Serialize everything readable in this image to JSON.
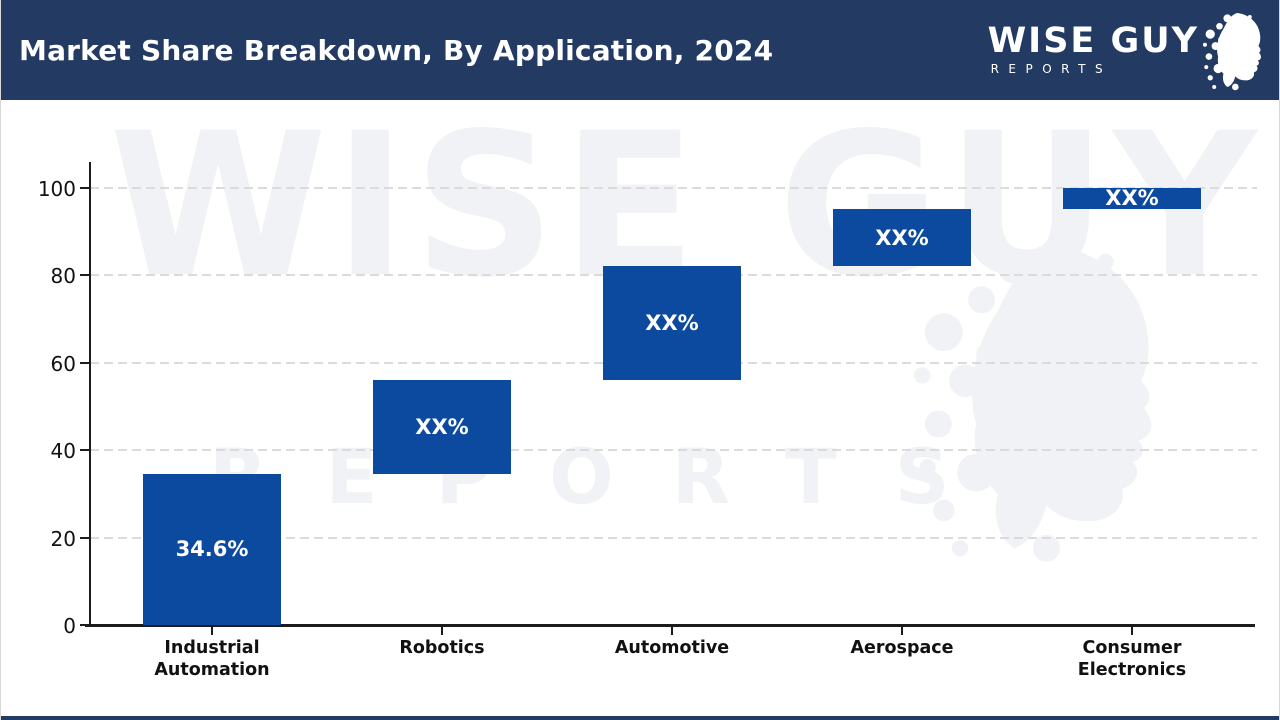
{
  "header": {
    "title": "Market Share Breakdown, By Application, 2024",
    "logo": {
      "line1": "WISE GUY",
      "line2": "REPORTS"
    }
  },
  "watermark": {
    "line1": "WISE GUY",
    "line2": "REPORTS"
  },
  "colors": {
    "header_bg": "#233A63",
    "footer_bg": "#233A63",
    "bar": "#0C4AA0",
    "grid": "#DBDBDB",
    "axis": "#1C1C1C",
    "bar_label": "#FFFFFF",
    "watermark_text": "#F1F2F5",
    "watermark_head": "#F0F2F5"
  },
  "chart_data": {
    "type": "bar",
    "subtype": "waterfall",
    "title": "Market Share Breakdown, By Application, 2024",
    "categories": [
      "Industrial Automation",
      "Robotics",
      "Automotive",
      "Aerospace",
      "Consumer Electronics"
    ],
    "segments": [
      {
        "category": "Industrial Automation",
        "start": 0,
        "end": 34.6,
        "label": "34.6%"
      },
      {
        "category": "Robotics",
        "start": 34.6,
        "end": 56,
        "label": "XX%"
      },
      {
        "category": "Automotive",
        "start": 56,
        "end": 82,
        "label": "XX%"
      },
      {
        "category": "Aerospace",
        "start": 82,
        "end": 95,
        "label": "XX%"
      },
      {
        "category": "Consumer Electronics",
        "start": 95,
        "end": 100,
        "label": "XX%"
      }
    ],
    "xlabel": "",
    "ylabel": "",
    "ylim": [
      0,
      100
    ],
    "yticks": [
      0,
      20,
      40,
      60,
      80,
      100
    ],
    "grid": "horizontal-dashed",
    "legend": "none"
  }
}
